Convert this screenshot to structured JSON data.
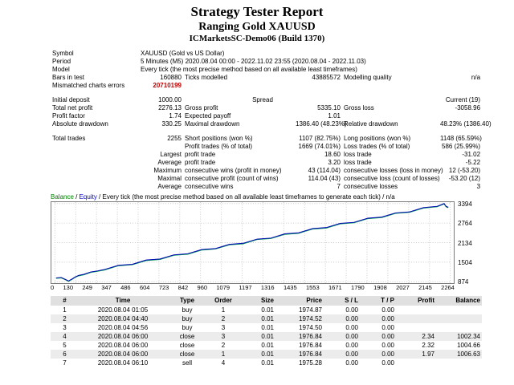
{
  "header": {
    "title": "Strategy Tester Report",
    "subtitle": "Ranging Gold XAUUSD",
    "server": "ICMarketsSC-Demo06 (Build 1370)"
  },
  "colors": {
    "error_text": "#c00000",
    "legend_balance": "#007f00",
    "legend_equity": "#0000c8",
    "trades_header_bg": "#e0e0e0",
    "row_stripe": "#ececec"
  },
  "stats": {
    "rows": [
      [
        {
          "t": "Symbol"
        },
        {
          "t": "XAUUSD (Gold vs US Dollar)",
          "s": 5
        }
      ],
      [
        {
          "t": "Period"
        },
        {
          "t": "5 Minutes (M5) 2020.08.04 00:00 - 2022.11.02 23:55 (2020.08.04 - 2022.11.03)",
          "s": 5
        }
      ],
      [
        {
          "t": "Model"
        },
        {
          "t": "Every tick (the most precise method based on all available least timeframes)",
          "s": 5
        }
      ],
      [
        {
          "t": "Bars in test"
        },
        {
          "t": "160880",
          "a": "r"
        },
        {
          "t": "Ticks modelled"
        },
        {
          "t": "43885572",
          "a": "r"
        },
        {
          "t": "Modelling quality"
        },
        {
          "t": "n/a",
          "a": "r"
        }
      ],
      [
        {
          "t": "Mismatched charts errors"
        },
        {
          "t": "20710199",
          "a": "r",
          "red": true
        },
        {
          "t": "",
          "s": 4
        }
      ],
      "spacer",
      [
        {
          "t": "Initial deposit"
        },
        {
          "t": "1000.00",
          "a": "r"
        },
        {
          "t": "Spread",
          "s": 2,
          "a": "c"
        },
        {
          "t": "Current (19)",
          "s": 2,
          "a": "r"
        }
      ],
      [
        {
          "t": "Total net profit"
        },
        {
          "t": "2276.13",
          "a": "r"
        },
        {
          "t": "Gross profit"
        },
        {
          "t": "5335.10",
          "a": "r"
        },
        {
          "t": "Gross loss"
        },
        {
          "t": "-3058.96",
          "a": "r"
        }
      ],
      [
        {
          "t": "Profit factor"
        },
        {
          "t": "1.74",
          "a": "r"
        },
        {
          "t": "Expected payoff"
        },
        {
          "t": "1.01",
          "a": "r"
        },
        {
          "t": ""
        },
        {
          "t": ""
        }
      ],
      [
        {
          "t": "Absolute drawdown"
        },
        {
          "t": "330.25",
          "a": "r"
        },
        {
          "t": "Maximal drawdown"
        },
        {
          "t": "1386.40 (48.23%)",
          "a": "r"
        },
        {
          "t": "Relative drawdown"
        },
        {
          "t": "48.23% (1386.40)",
          "a": "r"
        }
      ],
      "spacer",
      [
        {
          "t": "Total trades"
        },
        {
          "t": "2255",
          "a": "r"
        },
        {
          "t": "Short positions (won %)"
        },
        {
          "t": "1107 (82.75%)",
          "a": "r"
        },
        {
          "t": "Long positions (won %)"
        },
        {
          "t": "1148 (65.59%)",
          "a": "r"
        }
      ],
      [
        {
          "t": ""
        },
        {
          "t": ""
        },
        {
          "t": "Profit trades (% of total)"
        },
        {
          "t": "1669 (74.01%)",
          "a": "r"
        },
        {
          "t": "Loss trades (% of total)"
        },
        {
          "t": "586 (25.99%)",
          "a": "r"
        }
      ],
      [
        {
          "t": ""
        },
        {
          "t": "Largest",
          "a": "r"
        },
        {
          "t": "profit trade"
        },
        {
          "t": "18.60",
          "a": "r"
        },
        {
          "t": "loss trade"
        },
        {
          "t": "-31.02",
          "a": "r"
        }
      ],
      [
        {
          "t": ""
        },
        {
          "t": "Average",
          "a": "r"
        },
        {
          "t": "profit trade"
        },
        {
          "t": "3.20",
          "a": "r"
        },
        {
          "t": "loss trade"
        },
        {
          "t": "-5.22",
          "a": "r"
        }
      ],
      [
        {
          "t": ""
        },
        {
          "t": "Maximum",
          "a": "r"
        },
        {
          "t": "consecutive wins (profit in money)"
        },
        {
          "t": "43 (114.04)",
          "a": "r"
        },
        {
          "t": "consecutive losses (loss in money)"
        },
        {
          "t": "12 (-53.20)",
          "a": "r"
        }
      ],
      [
        {
          "t": ""
        },
        {
          "t": "Maximal",
          "a": "r"
        },
        {
          "t": "consecutive profit (count of wins)"
        },
        {
          "t": "114.04 (43)",
          "a": "r"
        },
        {
          "t": "consecutive loss (count of losses)"
        },
        {
          "t": "-53.20 (12)",
          "a": "r"
        }
      ],
      [
        {
          "t": ""
        },
        {
          "t": "Average",
          "a": "r"
        },
        {
          "t": "consecutive wins"
        },
        {
          "t": "7",
          "a": "r"
        },
        {
          "t": "consecutive losses"
        },
        {
          "t": "3",
          "a": "r"
        }
      ]
    ]
  },
  "chart_data": {
    "type": "line",
    "title": "",
    "legend_line": {
      "balance": "Balance",
      "sep": " / ",
      "equity": "Equity",
      "rest": " / Every tick (the most precise method based on all available least timeframes to generate each tick) / n/a"
    },
    "x_ticks": [
      0,
      130,
      249,
      347,
      486,
      604,
      723,
      842,
      960,
      1079,
      1197,
      1316,
      1435,
      1553,
      1671,
      1790,
      1908,
      2027,
      2145,
      2264
    ],
    "y_ticks": [
      874,
      1504,
      2134,
      2764,
      3394
    ],
    "xlim": [
      0,
      2264
    ],
    "ylim": [
      830,
      3440
    ],
    "colors": {
      "balance": "#0000b8",
      "equity": "#00a050"
    },
    "equity_offset": -16,
    "balance": [
      [
        0,
        1000
      ],
      [
        30,
        1012
      ],
      [
        55,
        950
      ],
      [
        72,
        902
      ],
      [
        95,
        975
      ],
      [
        110,
        1030
      ],
      [
        130,
        1080
      ],
      [
        160,
        1115
      ],
      [
        200,
        1190
      ],
      [
        240,
        1225
      ],
      [
        280,
        1270
      ],
      [
        360,
        1405
      ],
      [
        440,
        1439
      ],
      [
        520,
        1574
      ],
      [
        600,
        1608
      ],
      [
        680,
        1742
      ],
      [
        760,
        1777
      ],
      [
        840,
        1911
      ],
      [
        920,
        1946
      ],
      [
        1000,
        2080
      ],
      [
        1080,
        2114
      ],
      [
        1160,
        2249
      ],
      [
        1240,
        2283
      ],
      [
        1320,
        2418
      ],
      [
        1400,
        2452
      ],
      [
        1480,
        2586
      ],
      [
        1560,
        2621
      ],
      [
        1640,
        2755
      ],
      [
        1720,
        2790
      ],
      [
        1800,
        2924
      ],
      [
        1880,
        2958
      ],
      [
        1960,
        3093
      ],
      [
        2040,
        3127
      ],
      [
        2120,
        3262
      ],
      [
        2200,
        3306
      ],
      [
        2240,
        3394
      ],
      [
        2252,
        3300
      ],
      [
        2264,
        3276
      ]
    ]
  },
  "trades": {
    "headers": [
      "#",
      "Time",
      "Type",
      "Order",
      "Size",
      "Price",
      "S / L",
      "T / P",
      "Profit",
      "Balance"
    ],
    "aligns": [
      "c",
      "c",
      "c",
      "c",
      "r",
      "r",
      "r",
      "r",
      "r",
      "r"
    ],
    "rows": [
      [
        "1",
        "2020.08.04 01:05",
        "buy",
        "1",
        "0.01",
        "1974.87",
        "0.00",
        "0.00",
        "",
        ""
      ],
      [
        "2",
        "2020.08.04 04:40",
        "buy",
        "2",
        "0.01",
        "1974.52",
        "0.00",
        "0.00",
        "",
        ""
      ],
      [
        "3",
        "2020.08.04 04:56",
        "buy",
        "3",
        "0.01",
        "1974.50",
        "0.00",
        "0.00",
        "",
        ""
      ],
      [
        "4",
        "2020.08.04 06:00",
        "close",
        "3",
        "0.01",
        "1976.84",
        "0.00",
        "0.00",
        "2.34",
        "1002.34"
      ],
      [
        "5",
        "2020.08.04 06:00",
        "close",
        "2",
        "0.01",
        "1976.84",
        "0.00",
        "0.00",
        "2.32",
        "1004.66"
      ],
      [
        "6",
        "2020.08.04 06:00",
        "close",
        "1",
        "0.01",
        "1976.84",
        "0.00",
        "0.00",
        "1.97",
        "1006.63"
      ],
      [
        "7",
        "2020.08.04 06:10",
        "sell",
        "4",
        "0.01",
        "1975.28",
        "0.00",
        "0.00",
        "",
        ""
      ]
    ]
  }
}
